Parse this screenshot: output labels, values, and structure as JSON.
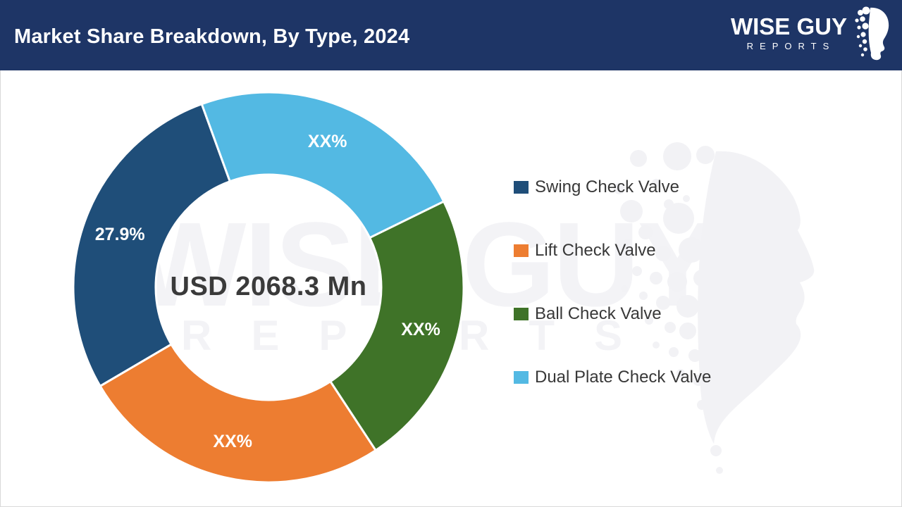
{
  "header": {
    "title": "Market Share Breakdown, By Type, 2024",
    "logo_line1": "WISE GUY",
    "logo_line2": "REPORTS"
  },
  "watermark": {
    "line1": "WISE GUY",
    "line2": "REPORTS"
  },
  "colors": {
    "header_bg": "#1e3566",
    "center_text": "#3a3a3a",
    "slice_label_text": "#ffffff",
    "watermark": "#f3f3f6"
  },
  "chart_data": {
    "type": "donut",
    "title": "Market Share Breakdown, By Type, 2024",
    "center_label": "USD 2068.3 Mn",
    "start_angle_deg": 110,
    "direction": "counterclockwise",
    "legend_position": "right",
    "slices": [
      {
        "label": "Swing Check Valve",
        "display": "27.9%",
        "value": 27.9,
        "color": "#1f4e79"
      },
      {
        "label": "Lift Check Valve",
        "display": "XX%",
        "value": 25.8,
        "color": "#ed7d31"
      },
      {
        "label": "Ball Check Valve",
        "display": "XX%",
        "value": 23.0,
        "color": "#3f7328"
      },
      {
        "label": "Dual Plate Check Valve",
        "display": "XX%",
        "value": 23.3,
        "color": "#53b9e3"
      }
    ]
  }
}
